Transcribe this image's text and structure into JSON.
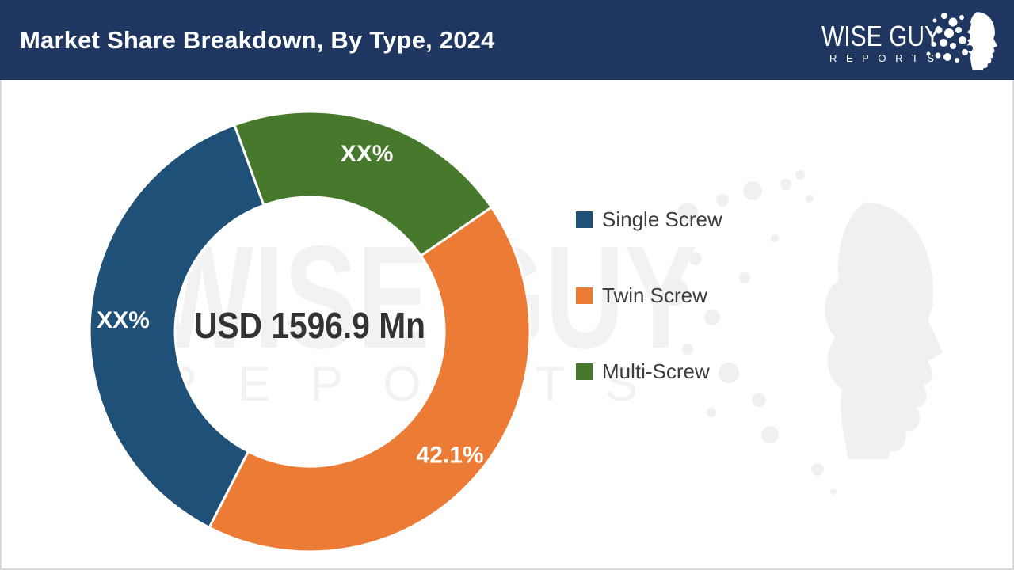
{
  "header": {
    "title": "Market Share Breakdown, By Type, 2024",
    "logo": {
      "line1": "WISE GUY",
      "line2": "REPORTS"
    }
  },
  "chart_data": {
    "type": "donut",
    "title": "Market Share Breakdown, By Type, 2024",
    "center_label": "USD 1596.9 Mn",
    "start_angle_deg_from_top": -20,
    "slices": [
      {
        "name": "Multi-Screw",
        "label": "XX%",
        "pct_of_circle": 21.0,
        "color": "#46792B"
      },
      {
        "name": "Twin Screw",
        "label": "42.1%",
        "pct_of_circle": 42.1,
        "color": "#EC7B35"
      },
      {
        "name": "Single Screw",
        "label": "XX%",
        "pct_of_circle": 36.9,
        "color": "#1F5077"
      }
    ],
    "legend": [
      {
        "label": "Single Screw",
        "color": "#1F5077"
      },
      {
        "label": "Twin Screw",
        "color": "#EC7B35"
      },
      {
        "label": "Multi-Screw",
        "color": "#46792B"
      }
    ],
    "legend_position": "right"
  },
  "watermark": {
    "line1": "WISE GUY",
    "line2": "REPORTS"
  },
  "colors": {
    "header_bg": "#1F3760",
    "blue": "#1F5077",
    "orange": "#EC7B35",
    "green": "#46792B",
    "center_text": "#333333",
    "legend_text": "#3D3D3D",
    "watermark": "#F2F2F2",
    "border": "#D9D9D9"
  }
}
